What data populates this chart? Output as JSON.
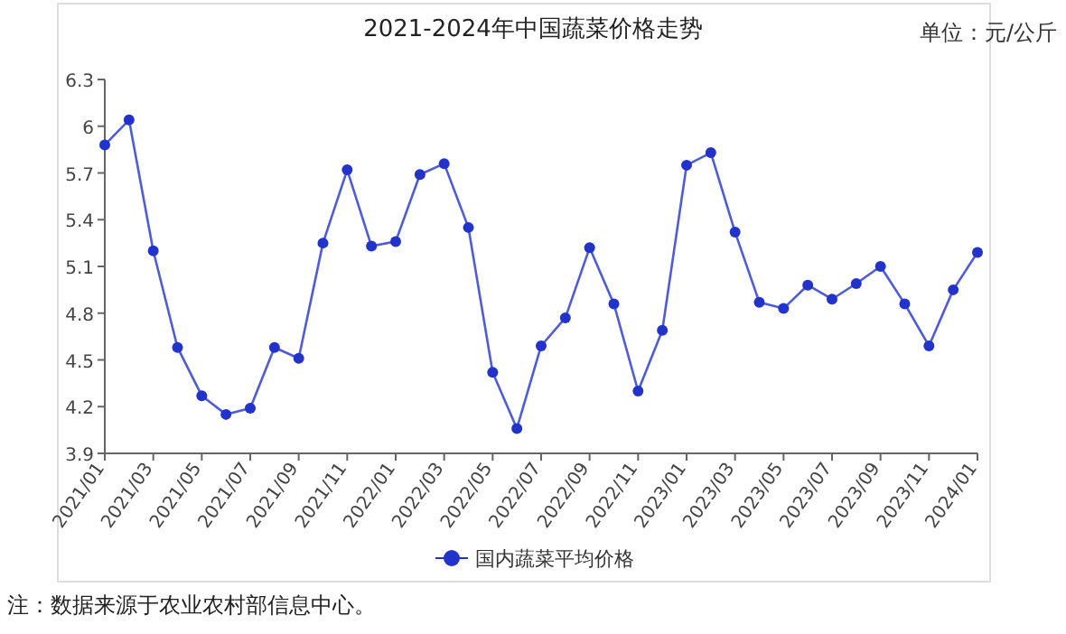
{
  "chart_data": {
    "type": "line",
    "title": "2021-2024年中国蔬菜价格走势",
    "ylabel": "单位：元/公斤",
    "categories": [
      "2021/01",
      null,
      "2021/03",
      null,
      "2021/05",
      null,
      "2021/07",
      null,
      "2021/09",
      null,
      "2021/11",
      null,
      "2022/01",
      null,
      "2022/03",
      null,
      "2022/05",
      null,
      "2022/07",
      null,
      "2022/09",
      null,
      "2022/11",
      null,
      "2023/01",
      null,
      "2023/03",
      null,
      "2023/05",
      null,
      "2023/07",
      null,
      "2023/09",
      null,
      "2023/11",
      null,
      "2024/01"
    ],
    "series": [
      {
        "name": "国内蔬菜平均价格",
        "color": "#2233cc",
        "values": [
          5.88,
          6.04,
          5.2,
          4.58,
          4.27,
          4.15,
          4.19,
          4.58,
          4.51,
          5.25,
          5.72,
          5.23,
          5.26,
          5.69,
          5.76,
          5.35,
          4.42,
          4.06,
          4.59,
          4.77,
          5.22,
          4.86,
          4.3,
          4.69,
          5.75,
          5.83,
          5.32,
          4.87,
          4.83,
          4.98,
          4.89,
          4.99,
          5.1,
          4.86,
          4.59,
          4.95,
          5.19
        ]
      }
    ],
    "ylim": [
      3.9,
      6.3
    ],
    "yticks": [
      3.9,
      4.2,
      4.5,
      4.8,
      5.1,
      5.4,
      5.7,
      6,
      6.3
    ],
    "marker": "circle",
    "legend": "bottom",
    "grid": false,
    "annotations": [
      "注：数据来源于农业农村部信息中心。"
    ]
  }
}
